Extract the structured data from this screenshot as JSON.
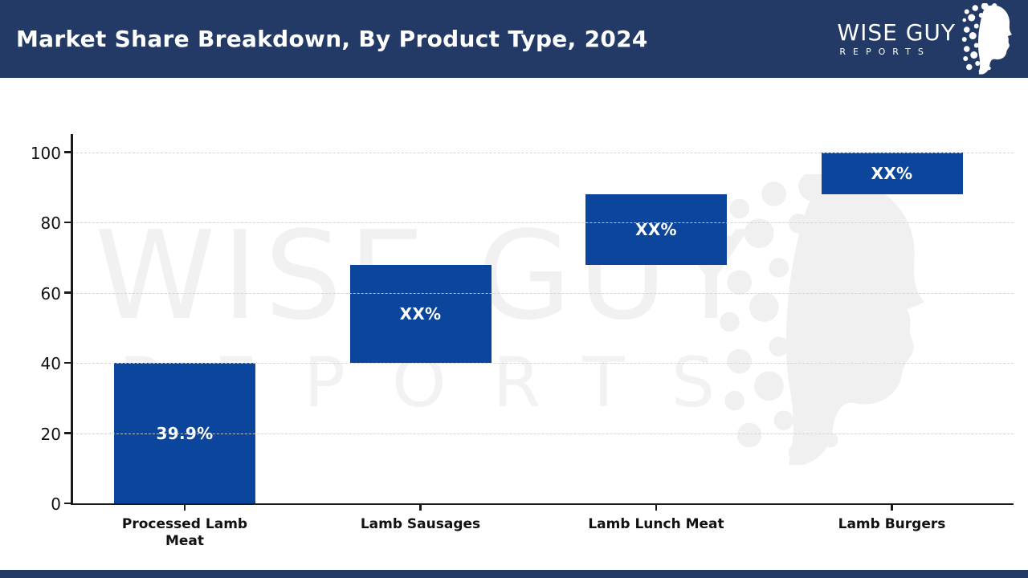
{
  "header": {
    "title": "Market Share Breakdown, By Product Type, 2024",
    "logo": {
      "line1": "WISE GUY",
      "line2": "REPORTS"
    }
  },
  "watermark": {
    "line1": "WISE GUY",
    "line2": "REPORTS"
  },
  "chart_data": {
    "type": "bar",
    "subtype": "floating-waterfall",
    "title": "Market Share Breakdown, By Product Type, 2024",
    "categories": [
      "Processed Lamb Meat",
      "Lamb Sausages",
      "Lamb Lunch Meat",
      "Lamb Burgers"
    ],
    "segments": [
      {
        "category": "Processed Lamb Meat",
        "start": 0,
        "end": 39.9,
        "label": "39.9%"
      },
      {
        "category": "Lamb Sausages",
        "start": 39.9,
        "end": 67.8,
        "label": "XX%"
      },
      {
        "category": "Lamb Lunch Meat",
        "start": 67.8,
        "end": 88.1,
        "label": "XX%"
      },
      {
        "category": "Lamb Burgers",
        "start": 88.1,
        "end": 100,
        "label": "XX%"
      }
    ],
    "xlabel": "",
    "ylabel": "",
    "ylim": [
      0,
      100
    ],
    "yticks": [
      0,
      20,
      40,
      60,
      80,
      100
    ],
    "grid": "horizontal-dashed-over-bars",
    "legend": "none",
    "bar_color": "#0b459c",
    "bar_label_color": "#ffffff"
  },
  "colors": {
    "header_bg": "#233a66",
    "footer_bg": "#233a66",
    "bar": "#0b459c",
    "axis": "#1a1a1a",
    "grid": "#d0d0d0",
    "watermark": "#f1f1f1"
  }
}
